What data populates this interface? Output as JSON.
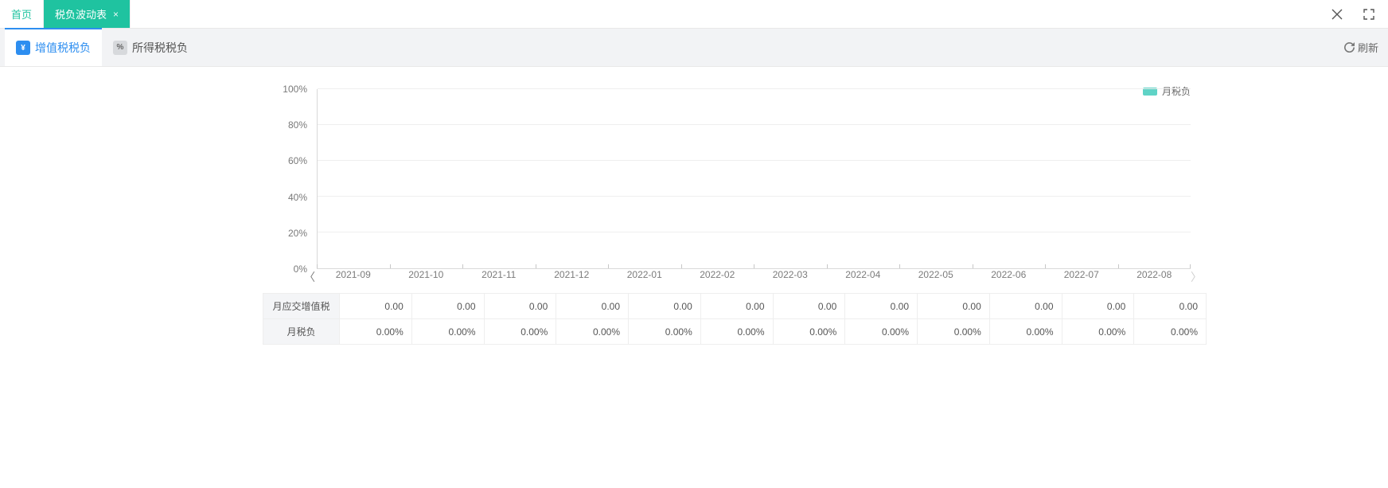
{
  "tabs": {
    "home": "首页",
    "active": "税负波动表"
  },
  "subtabs": {
    "vat": "增值税税负",
    "income": "所得税税负"
  },
  "toolbar": {
    "refresh": "刷新"
  },
  "chart": {
    "type": "bar",
    "legend_label": "月税负",
    "legend_color": "#5fd3c6",
    "y_ticks": [
      "0%",
      "20%",
      "40%",
      "60%",
      "80%",
      "100%"
    ],
    "ylim": [
      0,
      100
    ],
    "x_categories": [
      "2021-09",
      "2021-10",
      "2021-11",
      "2021-12",
      "2022-01",
      "2022-02",
      "2022-03",
      "2022-04",
      "2022-05",
      "2022-06",
      "2022-07",
      "2022-08"
    ],
    "values": [
      0,
      0,
      0,
      0,
      0,
      0,
      0,
      0,
      0,
      0,
      0,
      0
    ],
    "grid_color": "#efefef",
    "axis_color": "#d9d9d9",
    "background_color": "#ffffff",
    "label_fontsize": 12,
    "label_color": "#7b7b7b"
  },
  "table": {
    "rows": [
      {
        "label": "月应交增值税",
        "cells": [
          "0.00",
          "0.00",
          "0.00",
          "0.00",
          "0.00",
          "0.00",
          "0.00",
          "0.00",
          "0.00",
          "0.00",
          "0.00",
          "0.00"
        ]
      },
      {
        "label": "月税负",
        "cells": [
          "0.00%",
          "0.00%",
          "0.00%",
          "0.00%",
          "0.00%",
          "0.00%",
          "0.00%",
          "0.00%",
          "0.00%",
          "0.00%",
          "0.00%",
          "0.00%"
        ]
      }
    ]
  }
}
